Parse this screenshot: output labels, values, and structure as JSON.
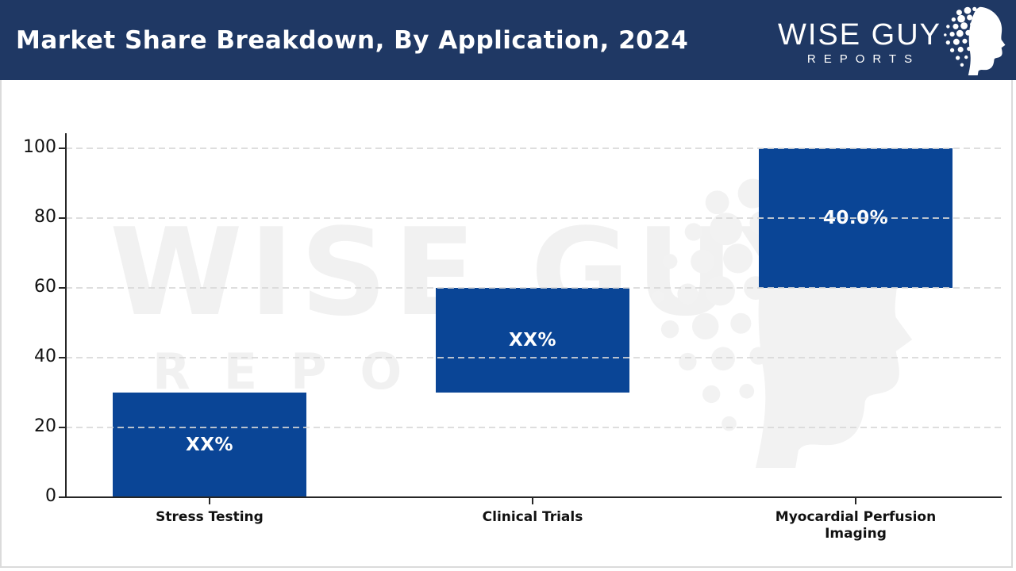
{
  "header": {
    "title": "Market Share Breakdown, By Application, 2024",
    "logo": {
      "line1": "WISE GUY",
      "line2": "REPORTS"
    }
  },
  "watermark": {
    "line1": "WISE GUY",
    "line2": "REPORTS"
  },
  "colors": {
    "header_bg": "#1F3864",
    "bar": "#0A4596",
    "bar_label": "#FFFFFF",
    "axis": "#262626",
    "grid": "#D8D8D8",
    "text": "#111111",
    "watermark": "#F1F1F1",
    "border": "#DBDBDB"
  },
  "chart_data": {
    "type": "bar",
    "subtype": "waterfall",
    "title": "Market Share Breakdown, By Application, 2024",
    "categories": [
      "Stress Testing",
      "Clinical Trials",
      "Myocardial Perfusion Imaging"
    ],
    "segments": [
      {
        "category": "Stress Testing",
        "start": 0,
        "end": 30,
        "label": "XX%"
      },
      {
        "category": "Clinical Trials",
        "start": 30,
        "end": 60,
        "label": "XX%"
      },
      {
        "category": "Myocardial Perfusion Imaging",
        "start": 60,
        "end": 100,
        "label": "40.0%"
      }
    ],
    "y_ticks": [
      0,
      20,
      40,
      60,
      80,
      100
    ],
    "ylim": [
      0,
      100
    ],
    "unit": "%",
    "grid": "horizontal-dashed",
    "legend": "none"
  }
}
